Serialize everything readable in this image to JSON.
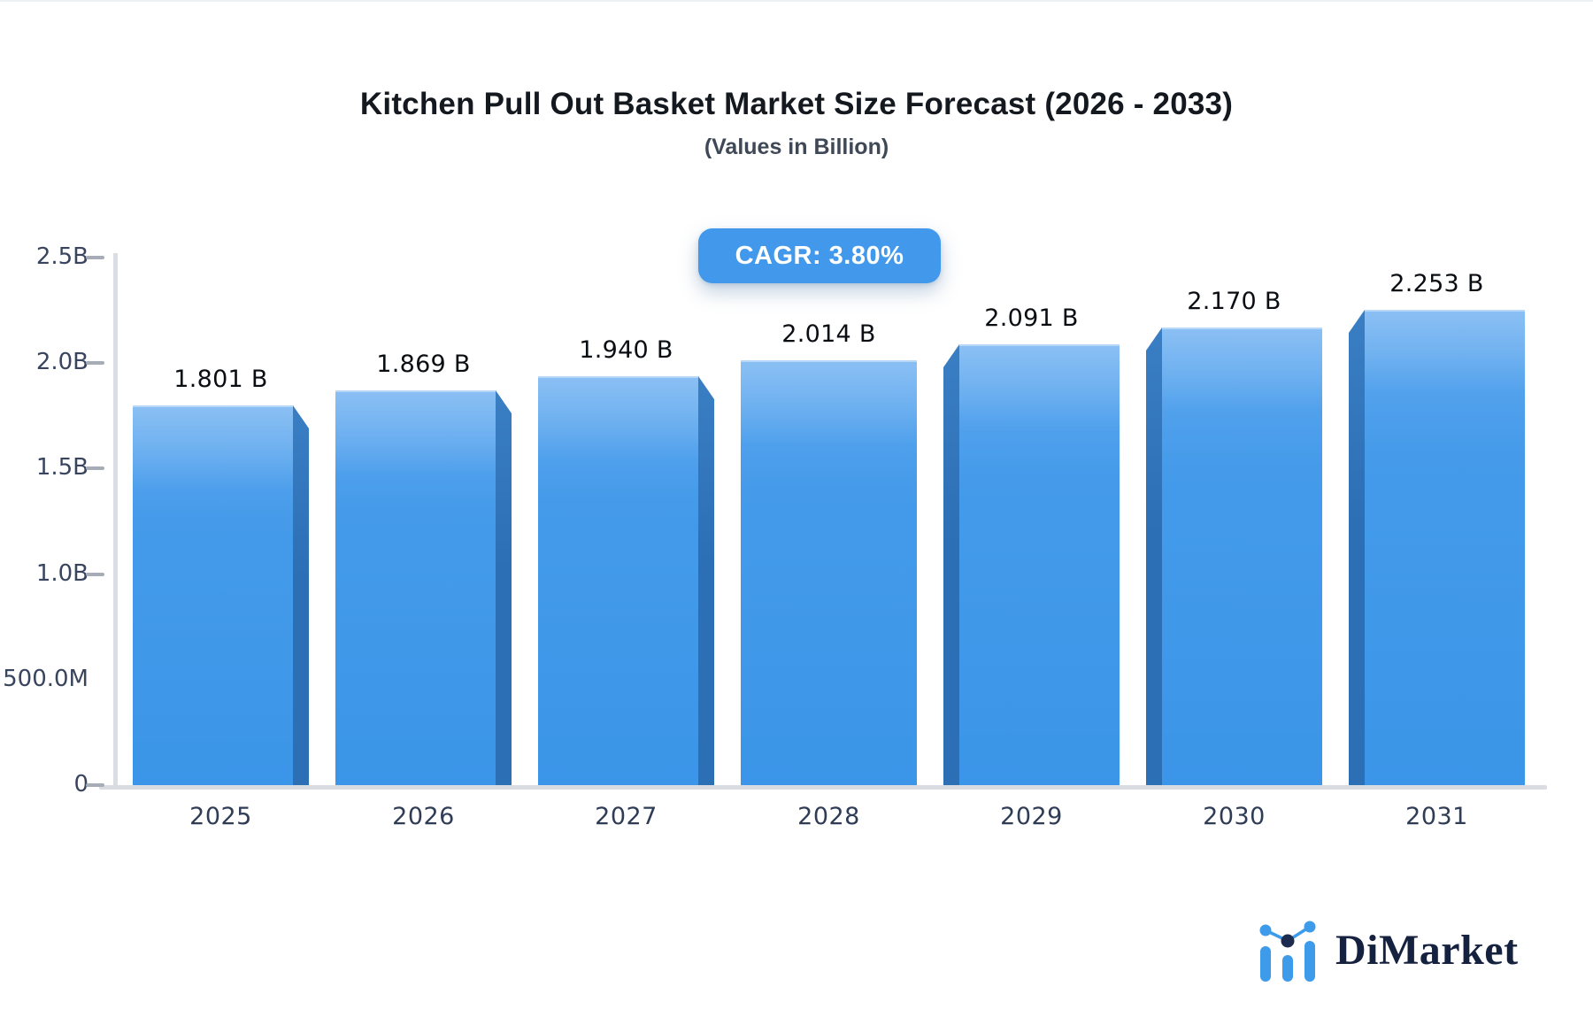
{
  "header": {
    "title": "Kitchen Pull Out Basket Market Size Forecast (2026 - 2033)",
    "subtitle": "(Values in Billion)"
  },
  "badge": {
    "label": "CAGR: 3.80%",
    "bg": "#4299ec",
    "text_color": "#ffffff"
  },
  "chart_data": {
    "type": "bar",
    "title": "Kitchen Pull Out Basket Market Size Forecast (2026 - 2033)",
    "subtitle": "(Values in Billion)",
    "categories": [
      "2025",
      "2026",
      "2027",
      "2028",
      "2029",
      "2030",
      "2031"
    ],
    "values": [
      1.801,
      1.869,
      1.94,
      2.014,
      2.091,
      2.17,
      2.253
    ],
    "value_labels": [
      "1.801 B",
      "1.869 B",
      "1.940 B",
      "2.014 B",
      "2.091 B",
      "2.170 B",
      "2.253 B"
    ],
    "unit": "Billion",
    "ylim": [
      0,
      2.5
    ],
    "yticks": [
      {
        "label": "2.5B",
        "value": 2.5,
        "dash": true
      },
      {
        "label": "2.0B",
        "value": 2.0,
        "dash": true
      },
      {
        "label": "1.5B",
        "value": 1.5,
        "dash": true
      },
      {
        "label": "1.0B",
        "value": 1.0,
        "dash": true
      },
      {
        "label": "500.0M",
        "value": 0.5,
        "dash": false
      },
      {
        "label": "0",
        "value": 0,
        "dash": true
      }
    ],
    "grid": false,
    "legend": false,
    "bar_color_top": "#63aaf0",
    "bar_color_bottom": "#3b95e8",
    "bar_side_color": "#2d6fb5",
    "annotation": "CAGR: 3.80%"
  },
  "logo": {
    "text": "DiMarket",
    "icon": "bar-chart-trend-icon",
    "icon_color": "#3d9bea",
    "dot_color": "#1d2b4f",
    "text_color": "#15223f"
  }
}
